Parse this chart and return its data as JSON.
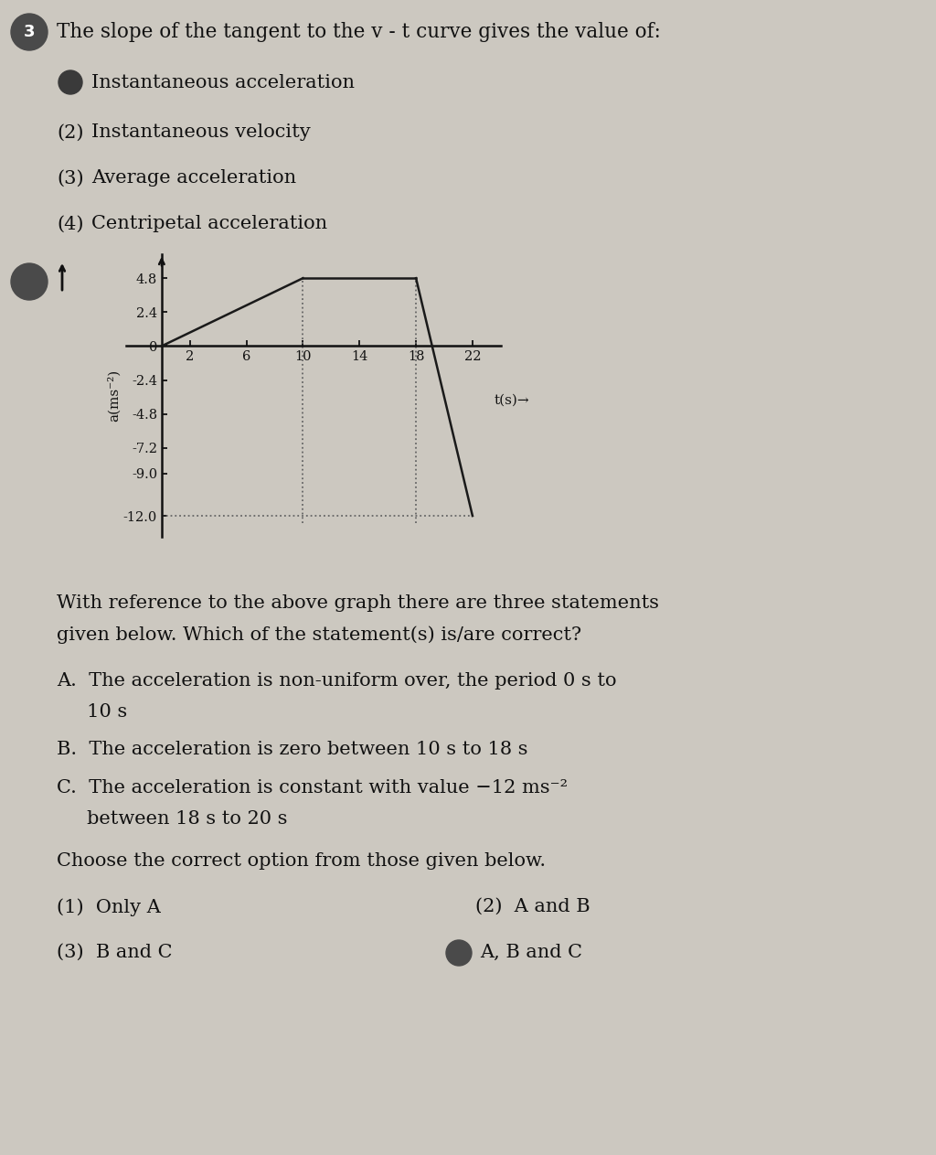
{
  "bg_color": "#ccc8c0",
  "q3_text": "The slope of the tangent to the v - t curve gives the value of:",
  "q3_options": [
    {
      "label": "",
      "text": "Instantaneous acceleration",
      "bullet": true
    },
    {
      "label": "(2)",
      "text": "Instantaneous velocity",
      "bullet": false
    },
    {
      "label": "(3)",
      "text": "Average acceleration",
      "bullet": false
    },
    {
      "label": "(4)",
      "text": "Centripetal acceleration",
      "bullet": false
    }
  ],
  "graph": {
    "yticks": [
      4.8,
      2.4,
      0,
      -2.4,
      -4.8,
      -7.2,
      -9.0,
      -12.0
    ],
    "xticks": [
      2,
      6,
      10,
      14,
      18,
      22
    ],
    "ylabel": "a(ms⁻²)",
    "xlabel": "t(s)→",
    "xlim": [
      -2.5,
      24
    ],
    "ylim": [
      -13.5,
      6.5
    ],
    "line_segments": [
      {
        "x": [
          0,
          10
        ],
        "y": [
          0,
          4.8
        ],
        "color": "#1a1a1a",
        "lw": 1.8
      },
      {
        "x": [
          10,
          18
        ],
        "y": [
          4.8,
          4.8
        ],
        "color": "#1a1a1a",
        "lw": 1.8
      },
      {
        "x": [
          18,
          22
        ],
        "y": [
          4.8,
          -12.0
        ],
        "color": "#1a1a1a",
        "lw": 1.8
      }
    ],
    "dotted_lines": [
      {
        "x": [
          10,
          10
        ],
        "y": [
          -12.5,
          4.8
        ],
        "color": "#666666",
        "ls": "dotted",
        "lw": 1.3
      },
      {
        "x": [
          18,
          18
        ],
        "y": [
          -12.5,
          4.8
        ],
        "color": "#666666",
        "ls": "dotted",
        "lw": 1.3
      },
      {
        "x": [
          0,
          22
        ],
        "y": [
          -12.0,
          -12.0
        ],
        "color": "#666666",
        "ls": "dotted",
        "lw": 1.3
      }
    ]
  },
  "q4_line1": "With reference to the above graph there are three statements",
  "q4_line2": "given below. Which of the statement(s) is/are correct?",
  "stmt_A_line1": "A.  The acceleration is non-uniform over, the period 0 s to",
  "stmt_A_line2": "     10 s",
  "stmt_B": "B.  The acceleration is zero between 10 s to 18 s",
  "stmt_C_line1": "C.  The acceleration is constant with value −12 ms⁻²",
  "stmt_C_line2": "     between 18 s to 20 s",
  "choose_text": "Choose the correct option from those given below.",
  "ans_col1": [
    "(1)  Only A",
    "(3)  B and C"
  ],
  "ans_col2": [
    "(2)  A and B",
    "A, B and C"
  ],
  "ans_bullet_row": 1,
  "ans_bullet_col": 1
}
